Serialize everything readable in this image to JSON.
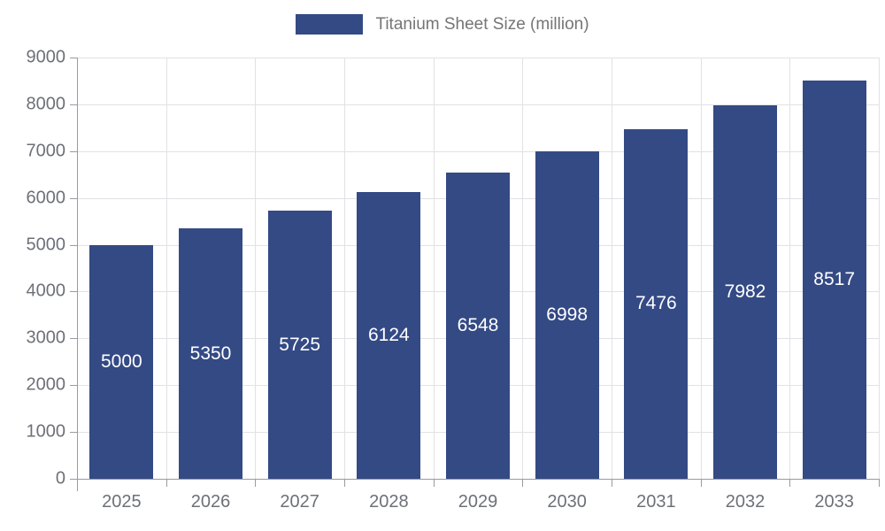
{
  "chart": {
    "legend": {
      "label": "Titanium Sheet Size (million)",
      "position": "top-center"
    },
    "colors": {
      "bar": "#344a85",
      "bar_label": "#ffffff",
      "axis_label": "#6e7079",
      "legend_text": "#757575",
      "grid_line": "#e2e2e6",
      "axis_line": "#9a9aa0",
      "background": "#ffffff"
    }
  },
  "chart_data": {
    "type": "bar",
    "title": "",
    "series_name": "Titanium Sheet Size (million)",
    "categories": [
      "2025",
      "2026",
      "2027",
      "2028",
      "2029",
      "2030",
      "2031",
      "2032",
      "2033"
    ],
    "values": [
      5000,
      5350,
      5725,
      6124,
      6548,
      6998,
      7476,
      7982,
      8517
    ],
    "bar_labels": [
      "5000",
      "5350",
      "5725",
      "6124",
      "6548",
      "6998",
      "7476",
      "7982",
      "8517"
    ],
    "xlabel": "",
    "ylabel": "",
    "ylim": [
      0,
      9000
    ],
    "ytick_step": 1000,
    "yticks": [
      0,
      1000,
      2000,
      3000,
      4000,
      5000,
      6000,
      7000,
      8000,
      9000
    ],
    "grid": true,
    "grid_vertical": true,
    "legend_position": "top-center",
    "bar_label_position": "inside-center"
  }
}
